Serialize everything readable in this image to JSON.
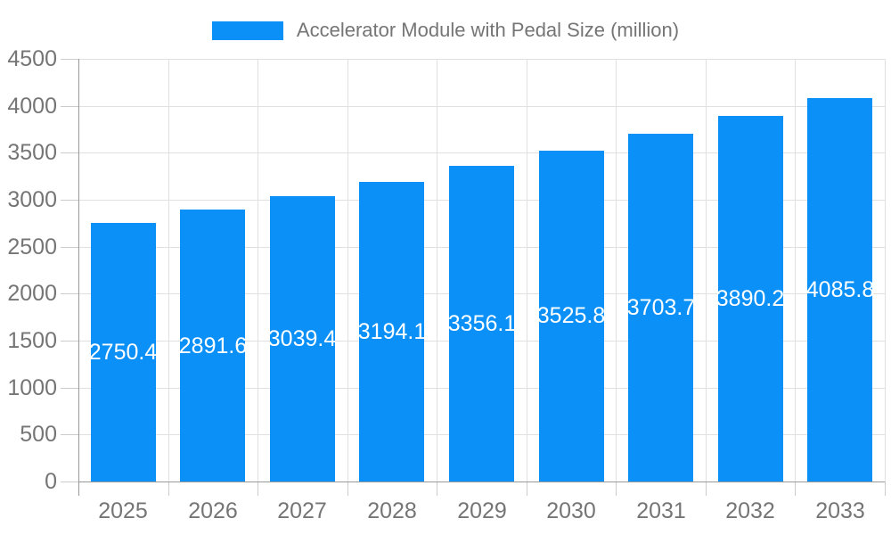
{
  "chart_data": {
    "type": "bar",
    "title": "Accelerator Module with Pedal Size (million)",
    "categories": [
      "2025",
      "2026",
      "2027",
      "2028",
      "2029",
      "2030",
      "2031",
      "2032",
      "2033"
    ],
    "values": [
      2750.4,
      2891.6,
      3039.4,
      3194.1,
      3356.1,
      3525.8,
      3703.7,
      3890.2,
      4085.8
    ],
    "value_labels": [
      "2750.4",
      "2891.6",
      "3039.4",
      "3194.1",
      "3356.1",
      "3525.8",
      "3703.7",
      "3890.2",
      "4085.8"
    ],
    "xlabel": "",
    "ylabel": "",
    "ylim": [
      0,
      4500
    ],
    "y_ticks": [
      0,
      500,
      1000,
      1500,
      2000,
      2500,
      3000,
      3500,
      4000,
      4500
    ],
    "grid": true,
    "legend_position": "top",
    "value_labels_inside_bars": true
  },
  "legend": {
    "label": "Accelerator Module with Pedal Size (million)"
  },
  "colors": {
    "bar": "#0b90f8",
    "grid_line": "#e0e0e0",
    "tick": "#cccccc",
    "axis_line": "#999999",
    "axis_label": "#757575",
    "value_label": "#ffffff",
    "background": "#ffffff"
  }
}
